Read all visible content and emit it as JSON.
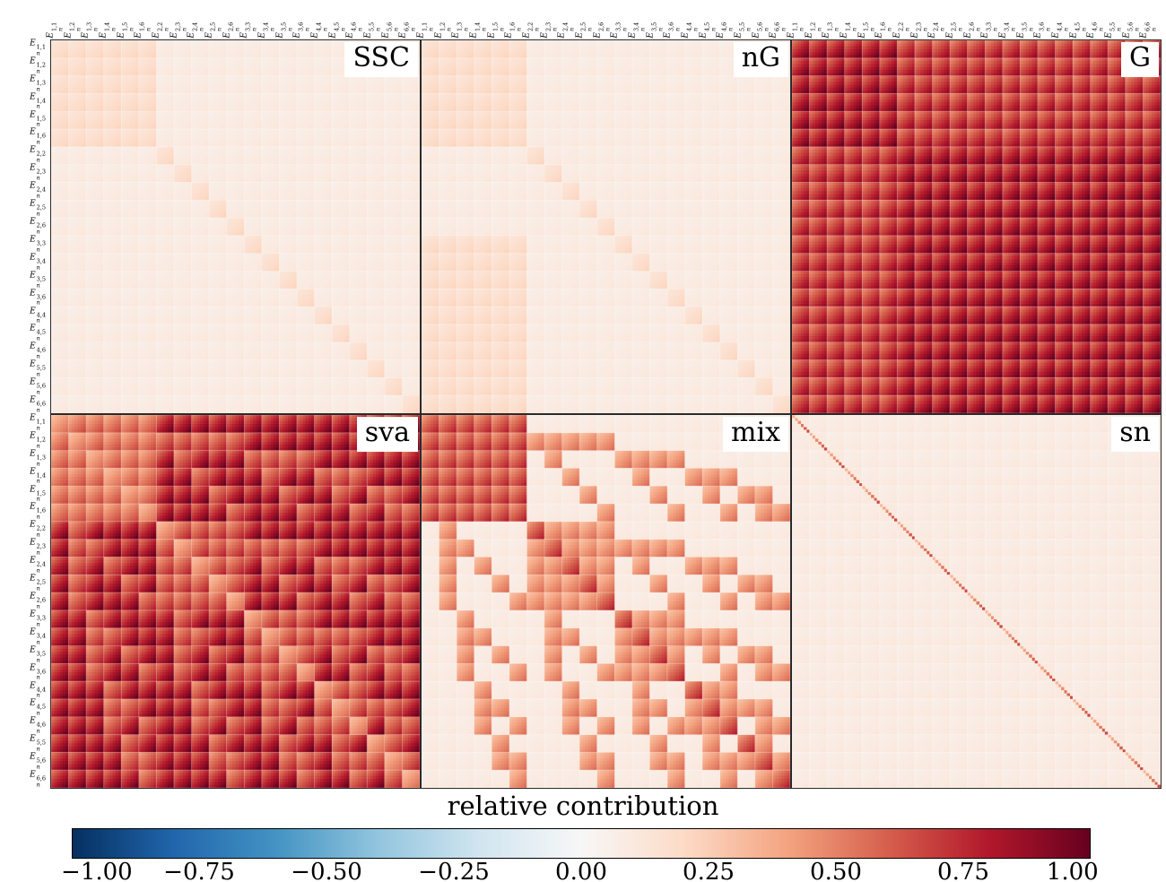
{
  "chart_data": {
    "type": "heatmap",
    "title": "",
    "description": "Six correlation-style heatmap panels (2 rows x 3 columns) comparing relative contributions across energy-pair observables; each panel is a 21x21 block matrix with fine sub-structure per block.",
    "axis_label_base": "E",
    "axis_label_subscript": "n",
    "axis_labels": [
      "1,1",
      "1,2",
      "1,3",
      "1,4",
      "1,5",
      "1,6",
      "2,2",
      "2,3",
      "2,4",
      "2,5",
      "2,6",
      "3,3",
      "3,4",
      "3,5",
      "3,6",
      "4,4",
      "4,5",
      "4,6",
      "5,5",
      "5,6",
      "6,6"
    ],
    "value_encoding": "Each matrix cell is one digit d (0-9); block mean value = d/9 on the relative-contribution scale [0,1]. Estimated by eye from the figure.",
    "panels": [
      {
        "label": "SSC",
        "row": 0,
        "col": 0,
        "substructure": "gradient",
        "rows": [
          "222222111111111111111",
          "222222111111111111111",
          "222222111111111111111",
          "222222111111111111111",
          "222222111111111111111",
          "222222111111111111111",
          "111111211111111111111",
          "111111121111111111111",
          "111111112111111111111",
          "111111111211111111111",
          "111111111121111111111",
          "111111111112111111111",
          "111111111111211111111",
          "111111111111121111111",
          "111111111111112111111",
          "111111111111111211111",
          "111111111111111121111",
          "111111111111111112111",
          "111111111111111111211",
          "111111111111111111121",
          "111111111111111111112"
        ]
      },
      {
        "label": "nG",
        "row": 0,
        "col": 1,
        "substructure": "gradient",
        "rows": [
          "222222111111111111111",
          "222222111111111111111",
          "222222111111111111111",
          "222222111111111111111",
          "222222111111111111111",
          "222222111111111111111",
          "111111211111111111111",
          "111111121111111111111",
          "111111112111111111111",
          "111111111211111111111",
          "111111111121111111111",
          "222222111112111111111",
          "222222111111211111111",
          "222222111111121111111",
          "222222111111112111111",
          "222222111111111211111",
          "222222111111111121111",
          "222222111111111112111",
          "222222111111111111211",
          "222222111111111111121",
          "222222111111111111112"
        ]
      },
      {
        "label": "G",
        "row": 0,
        "col": 2,
        "substructure": "gradient",
        "rows": [
          "999999888888888888888",
          "999999888888888888888",
          "999999888888888888888",
          "999999888888888888888",
          "999999888888888888888",
          "999999888888888888888",
          "888888999999999999999",
          "888888999999999999999",
          "888888999999999999999",
          "888888999999999999999",
          "888888999999999999999",
          "888888999999999999999",
          "888888999999999999999",
          "888888999999999999999",
          "888888999999999999999",
          "888888999999999999999",
          "888888999999999999999",
          "888888999999999999999",
          "888888999999999999999",
          "888888999999999999999",
          "888888999999999999999"
        ]
      },
      {
        "label": "sva",
        "row": 1,
        "col": 0,
        "substructure": "gradient",
        "rows": [
          "566666999999999999999",
          "656666777779999999999",
          "665666979997777999999",
          "666566997999799777999",
          "666656999799979979779",
          "666665999979997997977",
          "979999577779999999999",
          "977999757777777999999",
          "979799775779799777999",
          "979979777579979979779",
          "979997777759997997977",
          "997999979995777999999",
          "997799977997577777999",
          "997979979797757979779",
          "997997979977775997977",
          "999799997999799577999",
          "999779997799779757779",
          "999797997979797775977",
          "999979999799979979579",
          "999977999779977977757",
          "999997999979997997975"
        ]
      },
      {
        "label": "mix",
        "row": 1,
        "col": 1,
        "substructure": "gradient",
        "rows": [
          "777777111111111111111",
          "777777555551111111111",
          "777777151115555111111",
          "777777115111511555111",
          "777777111511151151551",
          "777777111151115115155",
          "151111755551111111111",
          "155111575555555111111",
          "151511557551511555111",
          "151151555751151151551",
          "151115555571115115155",
          "115111151117555111111",
          "115511155115755555111",
          "115151151515575151551",
          "115115151155557115155",
          "111511115111511755111",
          "111551115511551575551",
          "111515115151515557155",
          "111151111511151151751",
          "111155111551155155575",
          "111115111151115115157"
        ]
      },
      {
        "label": "sn",
        "row": 1,
        "col": 2,
        "substructure": "diagonal",
        "rows": [
          "611111111111111111111",
          "161111111111111111111",
          "116111111111111111111",
          "111611111111111111111",
          "111161111111111111111",
          "111116111111111111111",
          "111111611111111111111",
          "111111161111111111111",
          "111111116111111111111",
          "111111111611111111111",
          "111111111161111111111",
          "111111111116111111111",
          "111111111111611111111",
          "111111111111161111111",
          "111111111111116111111",
          "111111111111111611111",
          "111111111111111161111",
          "111111111111111116111",
          "111111111111111111611",
          "111111111111111111161",
          "111111111111111111116"
        ]
      }
    ],
    "colorbar": {
      "label": "relative contribution",
      "ticks": [
        "−1.00",
        "−0.75",
        "−0.50",
        "−0.25",
        "0.00",
        "0.25",
        "0.50",
        "0.75",
        "1.00"
      ],
      "tick_values": [
        -1,
        -0.75,
        -0.5,
        -0.25,
        0,
        0.25,
        0.5,
        0.75,
        1
      ],
      "range": [
        -1,
        1
      ],
      "stops": [
        [
          -1,
          "#053061"
        ],
        [
          -0.8,
          "#2166ac"
        ],
        [
          -0.6,
          "#4393c3"
        ],
        [
          -0.4,
          "#92c5de"
        ],
        [
          -0.2,
          "#d1e5f0"
        ],
        [
          0,
          "#f7f7f7"
        ],
        [
          0.2,
          "#fddbc7"
        ],
        [
          0.4,
          "#f4a582"
        ],
        [
          0.6,
          "#d6604d"
        ],
        [
          0.8,
          "#b2182b"
        ],
        [
          1,
          "#67001f"
        ]
      ]
    }
  }
}
